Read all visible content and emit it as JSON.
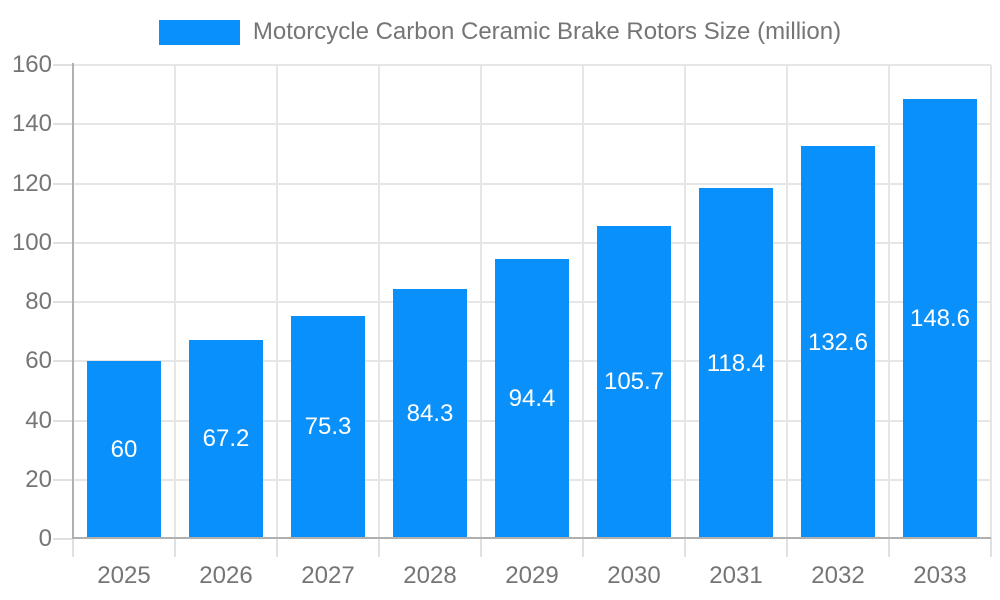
{
  "chart_data": {
    "type": "bar",
    "title": "Motorcycle Carbon Ceramic Brake Rotors Size (million)",
    "series_name": "Motorcycle Carbon Ceramic Brake Rotors Size (million)",
    "categories": [
      "2025",
      "2026",
      "2027",
      "2028",
      "2029",
      "2030",
      "2031",
      "2032",
      "2033"
    ],
    "values": [
      60,
      67.2,
      75.3,
      84.3,
      94.4,
      105.7,
      118.4,
      132.6,
      148.6
    ],
    "value_labels": [
      "60",
      "67.2",
      "75.3",
      "84.3",
      "94.4",
      "105.7",
      "118.4",
      "132.6",
      "148.6"
    ],
    "xlabel": "",
    "ylabel": "",
    "ylim": [
      0,
      160
    ],
    "yticks": [
      0,
      20,
      40,
      60,
      80,
      100,
      120,
      140,
      160
    ],
    "grid": true,
    "legend_position": "top",
    "colors": {
      "bar": "#0990fa",
      "bar_label_text": "#ffffff",
      "axis_text": "#757575",
      "axis_line": "#b0b0b0",
      "gridline": "#e6e6e6",
      "tick": "#e0e0e0",
      "background": "#ffffff"
    }
  }
}
